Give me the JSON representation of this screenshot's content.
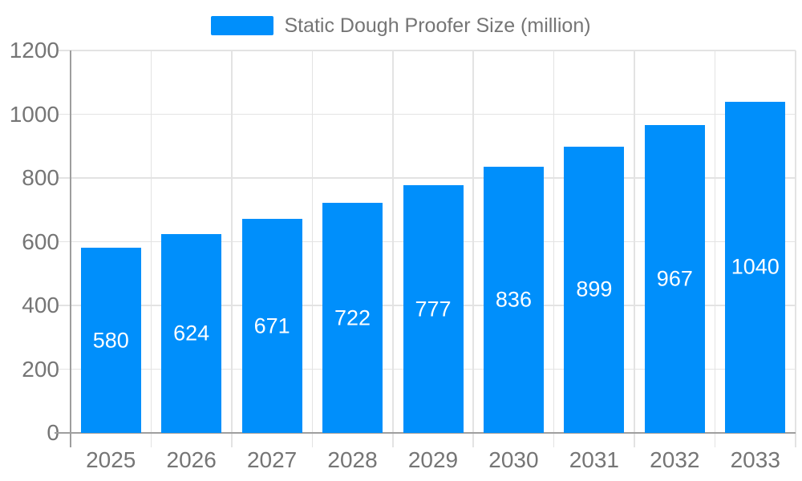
{
  "legend": {
    "label": "Static Dough Proofer Size (million)"
  },
  "chart_data": {
    "type": "bar",
    "title": "Static Dough Proofer Size (million)",
    "categories": [
      "2025",
      "2026",
      "2027",
      "2028",
      "2029",
      "2030",
      "2031",
      "2032",
      "2033"
    ],
    "series": [
      {
        "name": "Static Dough Proofer Size (million)",
        "values": [
          580,
          624,
          671,
          722,
          777,
          836,
          899,
          967,
          1040
        ]
      }
    ],
    "xlabel": "",
    "ylabel": "",
    "ylim": [
      0,
      1200
    ],
    "ytick_step": 200,
    "yticks": [
      0,
      200,
      400,
      600,
      800,
      1000,
      1200
    ],
    "grid": true,
    "legend_position": "top",
    "value_labels": "inside-center"
  },
  "colors": {
    "bar": "#008FFB",
    "grid": "#e3e3e3",
    "axis": "#9e9e9e",
    "text": "#757575",
    "value_label": "#ffffff",
    "background": "#ffffff"
  }
}
